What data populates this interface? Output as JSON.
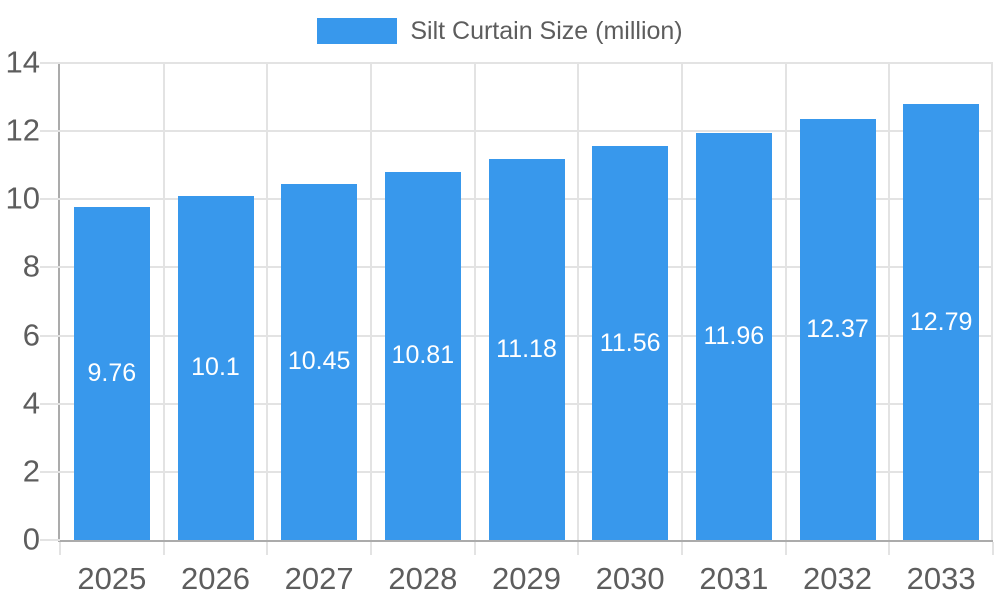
{
  "legend": {
    "label": "Silt Curtain Size (million)"
  },
  "chart_data": {
    "type": "bar",
    "title": "Silt Curtain Size (million)",
    "series_name": "Silt Curtain Size (million)",
    "categories": [
      "2025",
      "2026",
      "2027",
      "2028",
      "2029",
      "2030",
      "2031",
      "2032",
      "2033"
    ],
    "values": [
      9.76,
      10.1,
      10.45,
      10.81,
      11.18,
      11.56,
      11.96,
      12.37,
      12.79
    ],
    "value_labels": [
      "9.76",
      "10.1",
      "10.45",
      "10.81",
      "11.18",
      "11.56",
      "11.96",
      "12.37",
      "12.79"
    ],
    "xlabel": "",
    "ylabel": "",
    "ylim": [
      0,
      14
    ],
    "yticks": [
      0,
      2,
      4,
      6,
      8,
      10,
      12,
      14
    ],
    "grid": true,
    "legend_position": "top",
    "colors": {
      "bar": "#3898ec",
      "value_label": "#ffffff",
      "axis_label": "#5d5d5d",
      "legend_text": "#5d5d5d",
      "gridline": "#e3e3e3",
      "axis_line": "#ababab"
    }
  }
}
